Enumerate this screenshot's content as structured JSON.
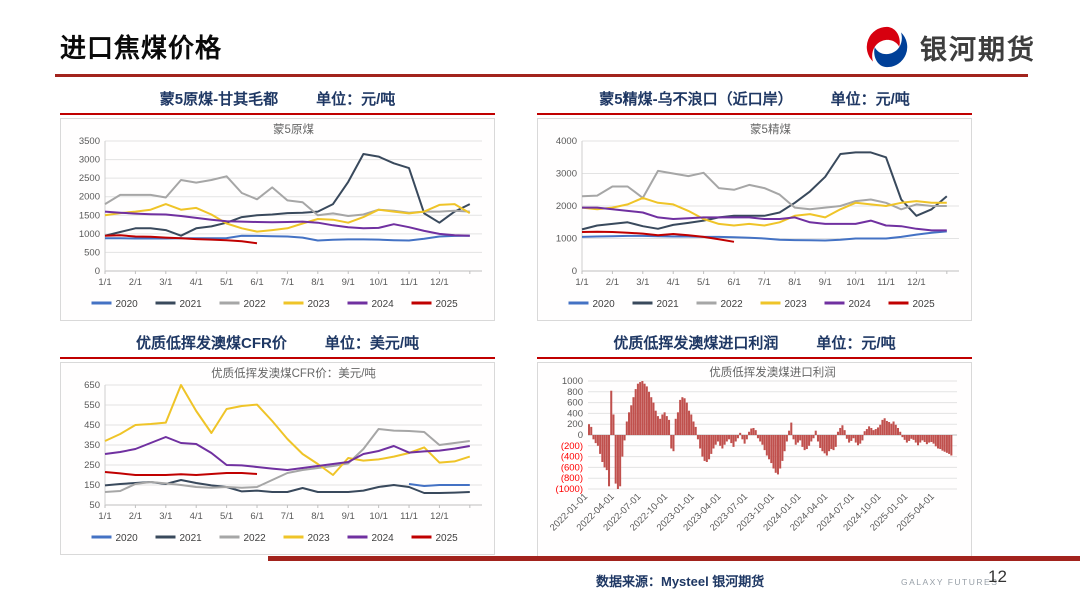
{
  "header": {
    "title": "进口焦煤价格",
    "logo_text": "银河期货"
  },
  "panels": [
    {
      "title": "蒙5原煤-甘其毛都",
      "unit": "单位：元/吨"
    },
    {
      "title": "蒙5精煤-乌不浪口（近口岸）",
      "unit": "单位：元/吨"
    },
    {
      "title": "优质低挥发澳煤CFR价",
      "unit": "单位：美元/吨"
    },
    {
      "title": "优质低挥发澳煤进口利润",
      "unit": "单位：元/吨"
    }
  ],
  "footer": {
    "source": "数据来源：Mysteel 银河期货",
    "brand": "GALAXY FUTURES",
    "page": "12"
  },
  "colors": {
    "accent_red": "#c00000",
    "rule_red": "#a2231d",
    "header_navy": "#1f3864",
    "s2020": "#4472c4",
    "s2021": "#39495c",
    "s2022": "#a6a6a6",
    "s2023": "#efc428",
    "s2024": "#7030a0",
    "s2025": "#c00000",
    "bar": "#c0504d"
  },
  "chart_data": [
    {
      "type": "line",
      "title": "蒙5原煤",
      "ylim": [
        0,
        3500
      ],
      "ystep": 500,
      "x_labels": [
        "1/1",
        "2/1",
        "3/1",
        "4/1",
        "5/1",
        "6/1",
        "7/1",
        "8/1",
        "9/1",
        "10/1",
        "11/1",
        "12/1"
      ],
      "legend_position": "bottom",
      "grid": true,
      "series": [
        {
          "name": "2020",
          "color": "#4472c4",
          "values": [
            880,
            880,
            875,
            875,
            875,
            880,
            880,
            880,
            885,
            950,
            945,
            935,
            930,
            900,
            820,
            840,
            850,
            850,
            845,
            830,
            820,
            870,
            930,
            945,
            950
          ]
        },
        {
          "name": "2021",
          "color": "#39495c",
          "values": [
            950,
            1050,
            1150,
            1150,
            1100,
            950,
            1150,
            1200,
            1300,
            1450,
            1500,
            1520,
            1560,
            1570,
            1600,
            1800,
            2400,
            3150,
            3080,
            2900,
            2770,
            1550,
            1300,
            1600,
            1800
          ]
        },
        {
          "name": "2022",
          "color": "#a6a6a6",
          "values": [
            1800,
            2050,
            2050,
            2050,
            1980,
            2450,
            2380,
            2450,
            2550,
            2100,
            1930,
            2250,
            1900,
            1850,
            1500,
            1550,
            1480,
            1520,
            1650,
            1620,
            1570,
            1600,
            1600,
            1620,
            1600
          ]
        },
        {
          "name": "2023",
          "color": "#efc428",
          "values": [
            1500,
            1560,
            1600,
            1650,
            1800,
            1650,
            1700,
            1520,
            1280,
            1150,
            1060,
            1100,
            1150,
            1280,
            1400,
            1380,
            1300,
            1450,
            1650,
            1600,
            1550,
            1600,
            1780,
            1800,
            1560
          ]
        },
        {
          "name": "2024",
          "color": "#7030a0",
          "values": [
            1600,
            1570,
            1545,
            1530,
            1520,
            1480,
            1430,
            1380,
            1340,
            1330,
            1320,
            1310,
            1320,
            1330,
            1300,
            1230,
            1180,
            1150,
            1160,
            1260,
            1180,
            1080,
            1000,
            960,
            950
          ]
        },
        {
          "name": "2025",
          "color": "#c00000",
          "values": [
            950,
            960,
            930,
            920,
            900,
            880,
            860,
            845,
            830,
            800,
            745,
            null,
            null,
            null,
            null,
            null,
            null,
            null,
            null,
            null,
            null,
            null,
            null,
            null,
            null
          ]
        }
      ]
    },
    {
      "type": "line",
      "title": "蒙5精煤",
      "ylim": [
        0,
        4000
      ],
      "ystep": 1000,
      "x_labels": [
        "1/1",
        "2/1",
        "3/1",
        "4/1",
        "5/1",
        "6/1",
        "7/1",
        "8/1",
        "9/1",
        "10/1",
        "11/1",
        "12/1"
      ],
      "legend_position": "bottom",
      "grid": true,
      "series": [
        {
          "name": "2020",
          "color": "#4472c4",
          "values": [
            1050,
            1060,
            1070,
            1080,
            1080,
            1070,
            1060,
            1060,
            1050,
            1050,
            1040,
            1020,
            1000,
            960,
            950,
            945,
            940,
            960,
            1000,
            1000,
            1000,
            1050,
            1120,
            1180,
            1220
          ]
        },
        {
          "name": "2021",
          "color": "#39495c",
          "values": [
            1280,
            1400,
            1450,
            1500,
            1380,
            1300,
            1420,
            1480,
            1550,
            1650,
            1700,
            1700,
            1700,
            1800,
            2100,
            2450,
            2900,
            3600,
            3650,
            3650,
            3500,
            2200,
            1700,
            1900,
            2300
          ]
        },
        {
          "name": "2022",
          "color": "#a6a6a6",
          "values": [
            2300,
            2320,
            2600,
            2600,
            2250,
            3080,
            3000,
            2920,
            3020,
            2550,
            2500,
            2650,
            2550,
            2350,
            1950,
            1900,
            1950,
            2000,
            2150,
            2200,
            2100,
            1900,
            2050,
            2000,
            2000
          ]
        },
        {
          "name": "2023",
          "color": "#efc428",
          "values": [
            1950,
            1900,
            1950,
            2050,
            2250,
            2100,
            2050,
            1850,
            1600,
            1450,
            1400,
            1450,
            1400,
            1500,
            1700,
            1750,
            1650,
            1900,
            2100,
            2050,
            2000,
            2100,
            2150,
            2100,
            2100
          ]
        },
        {
          "name": "2024",
          "color": "#7030a0",
          "values": [
            1950,
            1950,
            1900,
            1850,
            1800,
            1650,
            1600,
            1620,
            1650,
            1650,
            1650,
            1650,
            1600,
            1600,
            1650,
            1500,
            1450,
            1450,
            1450,
            1550,
            1400,
            1380,
            1300,
            1250,
            1250
          ]
        },
        {
          "name": "2025",
          "color": "#c00000",
          "values": [
            1200,
            1210,
            1200,
            1180,
            1150,
            1100,
            1140,
            1100,
            1050,
            980,
            900,
            null,
            null,
            null,
            null,
            null,
            null,
            null,
            null,
            null,
            null,
            null,
            null,
            null,
            null
          ]
        }
      ]
    },
    {
      "type": "line",
      "title": "优质低挥发澳煤CFR价：美元/吨",
      "ylim": [
        50,
        650
      ],
      "ystep": 100,
      "x_labels": [
        "1/1",
        "2/1",
        "3/1",
        "4/1",
        "5/1",
        "6/1",
        "7/1",
        "8/1",
        "9/1",
        "10/1",
        "11/1",
        "12/1"
      ],
      "legend_position": "bottom",
      "grid": true,
      "series": [
        {
          "name": "2020",
          "color": "#4472c4",
          "values": [
            null,
            null,
            null,
            null,
            null,
            null,
            null,
            null,
            null,
            null,
            null,
            null,
            null,
            null,
            null,
            null,
            null,
            null,
            null,
            null,
            155,
            145,
            150,
            150,
            150
          ]
        },
        {
          "name": "2021",
          "color": "#39495c",
          "values": [
            148,
            155,
            160,
            165,
            155,
            175,
            160,
            148,
            140,
            118,
            122,
            115,
            115,
            135,
            115,
            115,
            115,
            122,
            140,
            150,
            140,
            110,
            110,
            112,
            115
          ]
        },
        {
          "name": "2022",
          "color": "#a6a6a6",
          "values": [
            115,
            120,
            155,
            165,
            158,
            150,
            140,
            136,
            140,
            136,
            140,
            175,
            210,
            225,
            235,
            245,
            258,
            330,
            430,
            422,
            420,
            415,
            350,
            360,
            370
          ]
        },
        {
          "name": "2023",
          "color": "#efc428",
          "values": [
            370,
            405,
            450,
            455,
            462,
            650,
            520,
            410,
            530,
            545,
            552,
            470,
            380,
            305,
            255,
            200,
            285,
            272,
            278,
            292,
            310,
            338,
            262,
            268,
            292
          ]
        },
        {
          "name": "2024",
          "color": "#7030a0",
          "values": [
            305,
            315,
            330,
            360,
            390,
            360,
            355,
            310,
            250,
            248,
            240,
            232,
            225,
            235,
            245,
            255,
            265,
            305,
            320,
            345,
            312,
            318,
            322,
            332,
            345
          ]
        },
        {
          "name": "2025",
          "color": "#c00000",
          "values": [
            215,
            208,
            200,
            200,
            200,
            204,
            200,
            205,
            210,
            210,
            205,
            null,
            null,
            null,
            null,
            null,
            null,
            null,
            null,
            null,
            null,
            null,
            null,
            null,
            null
          ]
        }
      ]
    },
    {
      "type": "bar",
      "title": "优质低挥发澳煤进口利润",
      "ylim": [
        -1000,
        1000
      ],
      "ystep": 200,
      "color": "#c0504d",
      "paren_negative": true,
      "grid": true,
      "x_labels": [
        "2022-01-01",
        "2022-04-01",
        "2022-07-01",
        "2022-10-01",
        "2023-01-01",
        "2023-04-01",
        "2023-07-01",
        "2023-10-01",
        "2024-01-01",
        "2024-04-01",
        "2024-07-01",
        "2024-10-01",
        "2025-01-01",
        "2025-04-01"
      ],
      "x_label_months": [
        0,
        3,
        6,
        9,
        12,
        15,
        18,
        21,
        24,
        27,
        30,
        33,
        36,
        39
      ],
      "months_span": 41.5,
      "values": [
        200,
        150,
        -80,
        -150,
        -200,
        -350,
        -500,
        -600,
        -650,
        -950,
        820,
        380,
        -900,
        -1000,
        -950,
        -400,
        -100,
        250,
        420,
        550,
        700,
        850,
        950,
        980,
        1000,
        950,
        900,
        800,
        700,
        600,
        450,
        350,
        300,
        380,
        420,
        350,
        280,
        -250,
        -300,
        300,
        420,
        650,
        700,
        680,
        600,
        450,
        380,
        250,
        150,
        -80,
        -250,
        -400,
        -480,
        -500,
        -450,
        -350,
        -250,
        -180,
        -120,
        -200,
        -250,
        -180,
        -120,
        -80,
        -150,
        -220,
        -120,
        -60,
        40,
        -80,
        -160,
        -80,
        60,
        120,
        130,
        90,
        -60,
        -120,
        -180,
        -280,
        -380,
        -450,
        -520,
        -620,
        -700,
        -730,
        -620,
        -480,
        -300,
        -120,
        80,
        230,
        -80,
        -180,
        -140,
        -100,
        -220,
        -280,
        -260,
        -200,
        -120,
        -60,
        80,
        -120,
        -240,
        -300,
        -340,
        -380,
        -300,
        -260,
        -280,
        -220,
        60,
        130,
        180,
        90,
        -70,
        -140,
        -110,
        -60,
        -140,
        -190,
        -160,
        -100,
        70,
        110,
        160,
        130,
        90,
        110,
        140,
        190,
        280,
        310,
        260,
        240,
        210,
        250,
        190,
        130,
        60,
        -40,
        -90,
        -140,
        -110,
        -70,
        -90,
        -140,
        -190,
        -140,
        -100,
        -130,
        -170,
        -140,
        -130,
        -160,
        -210,
        -250,
        -260,
        -290,
        -310,
        -330,
        -350,
        -380
      ]
    }
  ]
}
